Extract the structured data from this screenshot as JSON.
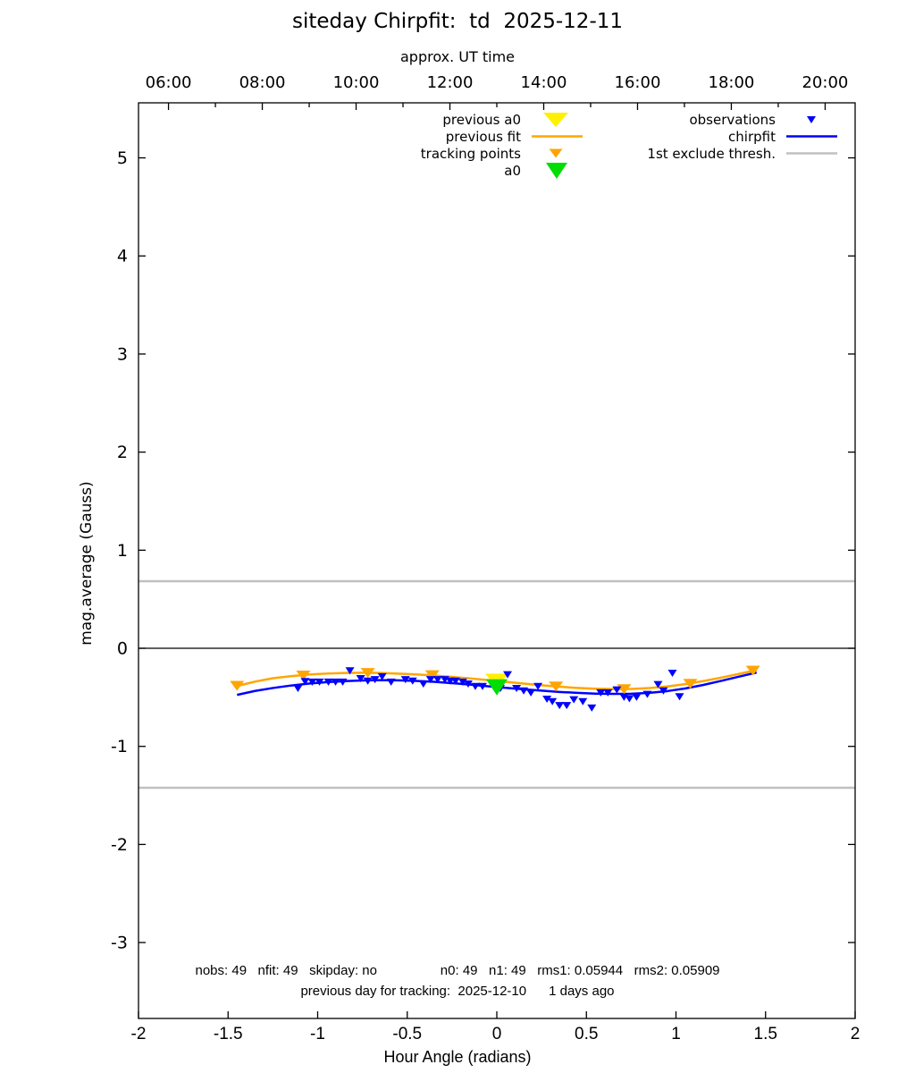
{
  "window": {
    "title": "siteday Chirpfit:  td  2025-12-11"
  },
  "colors": {
    "observations": "#0000ff",
    "chirpfit": "#0000ff",
    "previous_fit": "#ffa500",
    "tracking_points": "#ffa500",
    "previous_a0": "#fff000",
    "a0": "#00dd00",
    "exclude_threshold": "#c0c0c0",
    "axis": "#000000"
  },
  "chart_data": {
    "type": "scatter",
    "title": "siteday Chirpfit:  td  2025-12-11",
    "x2label": "approx. UT time",
    "xlabel": "Hour Angle (radians)",
    "ylabel": "mag.average (Gauss)",
    "xlim": [
      -2,
      2
    ],
    "ylim": [
      -3.774,
      5.561
    ],
    "grid": false,
    "legend_position": "top-center-inside",
    "x_ticks": [
      -2,
      -1.5,
      -1,
      -0.5,
      0,
      0.5,
      1,
      1.5,
      2
    ],
    "x_tick_labels": [
      "-2",
      "-1.5",
      "-1",
      "-0.5",
      "0",
      "0.5",
      "1",
      "1.5",
      "2"
    ],
    "y_ticks": [
      5,
      4,
      3,
      2,
      1,
      0,
      -1,
      -2,
      -3
    ],
    "ut_ref_hour": 13,
    "rad_per_hour": 0.261799,
    "ut_major_hours": [
      6,
      8,
      10,
      12,
      14,
      16,
      18,
      20
    ],
    "ut_major_labels": [
      "06:00",
      "08:00",
      "10:00",
      "12:00",
      "14:00",
      "16:00",
      "18:00",
      "20:00"
    ],
    "ut_minor_hours": [
      7,
      9,
      11,
      13,
      15,
      17,
      19
    ],
    "exclude_thresholds": [
      0.684,
      -1.422
    ],
    "zero_line": 0,
    "series": {
      "observations": {
        "label": "observations",
        "marker": "triangle-down-small",
        "points": [
          [
            -1.11,
            -0.41
          ],
          [
            -1.07,
            -0.34
          ],
          [
            -1.03,
            -0.345
          ],
          [
            -0.99,
            -0.345
          ],
          [
            -0.94,
            -0.345
          ],
          [
            -0.9,
            -0.345
          ],
          [
            -0.86,
            -0.345
          ],
          [
            -0.82,
            -0.23
          ],
          [
            -0.76,
            -0.31
          ],
          [
            -0.72,
            -0.335
          ],
          [
            -0.68,
            -0.32
          ],
          [
            -0.64,
            -0.29
          ],
          [
            -0.59,
            -0.345
          ],
          [
            -0.51,
            -0.32
          ],
          [
            -0.47,
            -0.335
          ],
          [
            -0.41,
            -0.365
          ],
          [
            -0.37,
            -0.32
          ],
          [
            -0.33,
            -0.32
          ],
          [
            -0.29,
            -0.32
          ],
          [
            -0.26,
            -0.335
          ],
          [
            -0.23,
            -0.335
          ],
          [
            -0.19,
            -0.345
          ],
          [
            -0.16,
            -0.365
          ],
          [
            -0.12,
            -0.39
          ],
          [
            -0.08,
            -0.39
          ],
          [
            0.02,
            -0.41
          ],
          [
            0.06,
            -0.27
          ],
          [
            0.11,
            -0.41
          ],
          [
            0.15,
            -0.435
          ],
          [
            0.19,
            -0.455
          ],
          [
            0.23,
            -0.39
          ],
          [
            0.28,
            -0.52
          ],
          [
            0.31,
            -0.545
          ],
          [
            0.35,
            -0.585
          ],
          [
            0.39,
            -0.585
          ],
          [
            0.43,
            -0.525
          ],
          [
            0.48,
            -0.545
          ],
          [
            0.53,
            -0.61
          ],
          [
            0.58,
            -0.455
          ],
          [
            0.62,
            -0.455
          ],
          [
            0.67,
            -0.425
          ],
          [
            0.71,
            -0.5
          ],
          [
            0.74,
            -0.515
          ],
          [
            0.78,
            -0.5
          ],
          [
            0.84,
            -0.47
          ],
          [
            0.9,
            -0.37
          ],
          [
            0.93,
            -0.435
          ],
          [
            0.98,
            -0.255
          ],
          [
            1.02,
            -0.495
          ]
        ]
      },
      "chirpfit": {
        "label": "chirpfit",
        "points": [
          [
            -1.45,
            -0.475
          ],
          [
            -1.35,
            -0.435
          ],
          [
            -1.25,
            -0.405
          ],
          [
            -1.15,
            -0.38
          ],
          [
            -1.05,
            -0.36
          ],
          [
            -0.95,
            -0.345
          ],
          [
            -0.85,
            -0.335
          ],
          [
            -0.75,
            -0.328
          ],
          [
            -0.65,
            -0.325
          ],
          [
            -0.55,
            -0.327
          ],
          [
            -0.45,
            -0.333
          ],
          [
            -0.35,
            -0.342
          ],
          [
            -0.25,
            -0.355
          ],
          [
            -0.15,
            -0.37
          ],
          [
            -0.05,
            -0.387
          ],
          [
            0.05,
            -0.403
          ],
          [
            0.15,
            -0.418
          ],
          [
            0.25,
            -0.432
          ],
          [
            0.35,
            -0.445
          ],
          [
            0.45,
            -0.455
          ],
          [
            0.55,
            -0.462
          ],
          [
            0.65,
            -0.465
          ],
          [
            0.75,
            -0.464
          ],
          [
            0.85,
            -0.455
          ],
          [
            0.95,
            -0.437
          ],
          [
            1.05,
            -0.41
          ],
          [
            1.15,
            -0.375
          ],
          [
            1.25,
            -0.333
          ],
          [
            1.35,
            -0.29
          ],
          [
            1.45,
            -0.247
          ]
        ]
      },
      "previous_fit": {
        "label": "previous fit",
        "points": [
          [
            -1.45,
            -0.385
          ],
          [
            -1.35,
            -0.34
          ],
          [
            -1.25,
            -0.305
          ],
          [
            -1.15,
            -0.285
          ],
          [
            -1.05,
            -0.268
          ],
          [
            -0.95,
            -0.258
          ],
          [
            -0.85,
            -0.252
          ],
          [
            -0.75,
            -0.25
          ],
          [
            -0.65,
            -0.252
          ],
          [
            -0.55,
            -0.258
          ],
          [
            -0.45,
            -0.267
          ],
          [
            -0.35,
            -0.278
          ],
          [
            -0.25,
            -0.292
          ],
          [
            -0.15,
            -0.307
          ],
          [
            -0.05,
            -0.325
          ],
          [
            0.05,
            -0.342
          ],
          [
            0.15,
            -0.36
          ],
          [
            0.25,
            -0.377
          ],
          [
            0.35,
            -0.392
          ],
          [
            0.45,
            -0.404
          ],
          [
            0.55,
            -0.412
          ],
          [
            0.65,
            -0.416
          ],
          [
            0.75,
            -0.415
          ],
          [
            0.85,
            -0.406
          ],
          [
            0.95,
            -0.39
          ],
          [
            1.05,
            -0.366
          ],
          [
            1.15,
            -0.335
          ],
          [
            1.25,
            -0.3
          ],
          [
            1.35,
            -0.262
          ],
          [
            1.45,
            -0.222
          ]
        ]
      },
      "tracking_points": {
        "label": "tracking points",
        "marker": "triangle-down-medium",
        "points": [
          [
            -1.45,
            -0.383
          ],
          [
            -1.08,
            -0.278
          ],
          [
            -0.72,
            -0.252
          ],
          [
            -0.36,
            -0.275
          ],
          [
            0.33,
            -0.39
          ],
          [
            0.71,
            -0.417
          ],
          [
            1.08,
            -0.362
          ],
          [
            1.43,
            -0.228
          ]
        ]
      },
      "previous_a0": {
        "label": "previous a0",
        "marker": "triangle-down-large",
        "point": [
          0,
          -0.332
        ]
      },
      "a0": {
        "label": "a0",
        "marker": "triangle-down-large",
        "point": [
          0,
          -0.398
        ]
      }
    }
  },
  "legend": {
    "columns": [
      {
        "items": [
          {
            "label": "previous a0",
            "swatch": "triangle",
            "series": "previous_a0"
          },
          {
            "label": "previous fit",
            "swatch": "line",
            "series": "previous_fit"
          },
          {
            "label": "tracking points",
            "swatch": "triangle",
            "series": "tracking_points"
          },
          {
            "label": "a0",
            "swatch": "triangle",
            "series": "a0"
          }
        ]
      },
      {
        "items": [
          {
            "label": "observations",
            "swatch": "triangle",
            "series": "observations"
          },
          {
            "label": "chirpfit",
            "swatch": "line",
            "series": "chirpfit"
          },
          {
            "label": "1st exclude thresh.",
            "swatch": "line",
            "series": "exclude_threshold"
          }
        ]
      }
    ]
  },
  "stats": {
    "line1": "nobs: 49   nfit: 49   skipday: no                 n0: 49   n1: 49   rms1: 0.05944   rms2: 0.05909",
    "line2": "previous day for tracking:  2025-12-10      1 days ago"
  }
}
